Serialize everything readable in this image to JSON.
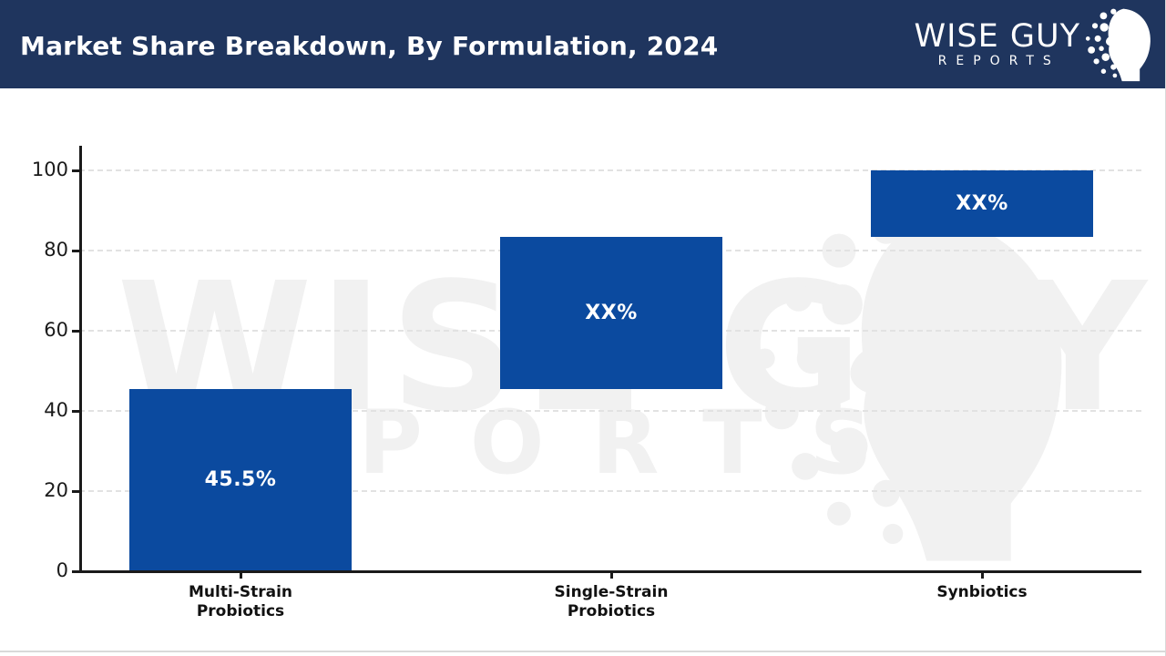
{
  "header": {
    "title": "Market Share Breakdown, By Formulation, 2024",
    "logo": {
      "line1": "WISE GUY",
      "line2": "REPORTS"
    }
  },
  "watermark": {
    "line1": "WISE GUY",
    "line2": "REPORTS"
  },
  "chart_data": {
    "type": "bar",
    "subtype": "waterfall",
    "title": "Market Share Breakdown, By Formulation, 2024",
    "categories": [
      "Multi-Strain Probiotics",
      "Single-Strain Probiotics",
      "Synbiotics"
    ],
    "bars": [
      {
        "category_lines": [
          "Multi-Strain",
          "Probiotics"
        ],
        "start": 0,
        "end": 45.5,
        "label": "45.5%"
      },
      {
        "category_lines": [
          "Single-Strain",
          "Probiotics"
        ],
        "start": 45.5,
        "end": 83.5,
        "label": "XX%"
      },
      {
        "category_lines": [
          "Synbiotics"
        ],
        "start": 83.5,
        "end": 100,
        "label": "XX%"
      }
    ],
    "ylim": [
      0,
      100
    ],
    "yticks": [
      0,
      20,
      40,
      60,
      80,
      100
    ],
    "xlabel": "",
    "ylabel": "",
    "grid": true,
    "legend": "none",
    "bar_color": "#0B4A9F",
    "bar_label_color": "#ffffff"
  },
  "colors": {
    "header_navy": "#1F355E",
    "bar_blue": "#0B4A9F",
    "axis_dark": "#1a1a1a",
    "grid_gray": "#e2e2e2",
    "watermark_gray": "#f1f1f1",
    "footer_rule_gray": "#d9d9d9"
  }
}
